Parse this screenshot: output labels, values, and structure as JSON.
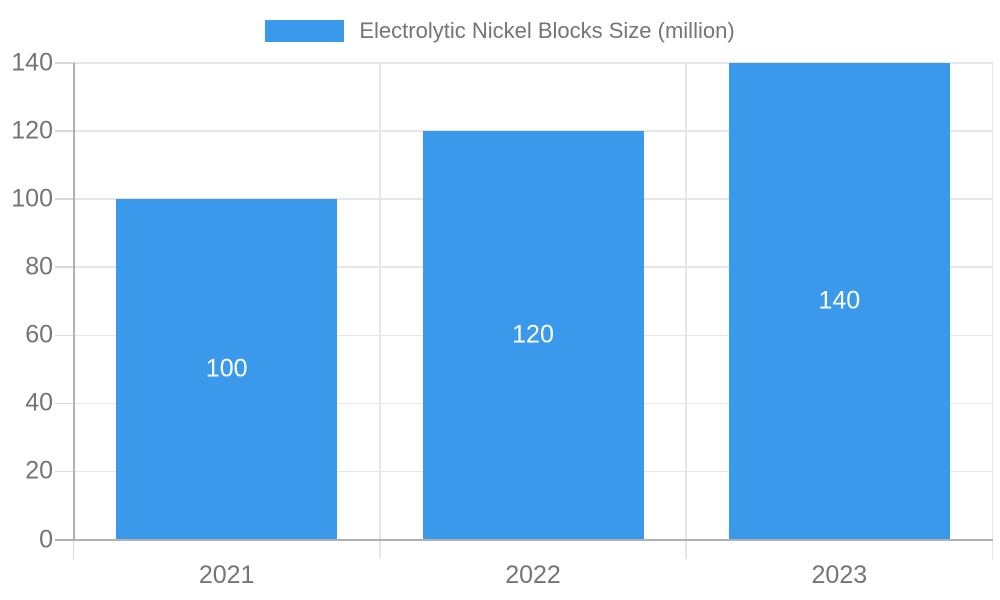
{
  "chart_data": {
    "type": "bar",
    "title": "Electrolytic Nickel Blocks Size (million)",
    "legend_position": "top",
    "categories": [
      "2021",
      "2022",
      "2023"
    ],
    "series": [
      {
        "name": "Electrolytic Nickel Blocks Size (million)",
        "values": [
          100,
          120,
          140
        ]
      }
    ],
    "yticks": [
      0,
      20,
      40,
      60,
      80,
      100,
      120,
      140
    ],
    "ylim": [
      0,
      140
    ],
    "xlabel": "",
    "ylabel": "",
    "grid": true,
    "data_labels_inside": true,
    "colors": {
      "bar": "#3B99EC",
      "axis_text": "#757575",
      "data_label_text": "#FFFFFF",
      "gridline": "#E6E6E6",
      "axis_line": "#B1B1B1",
      "tick": "#D9D9D9",
      "background": "#FFFFFF"
    }
  }
}
